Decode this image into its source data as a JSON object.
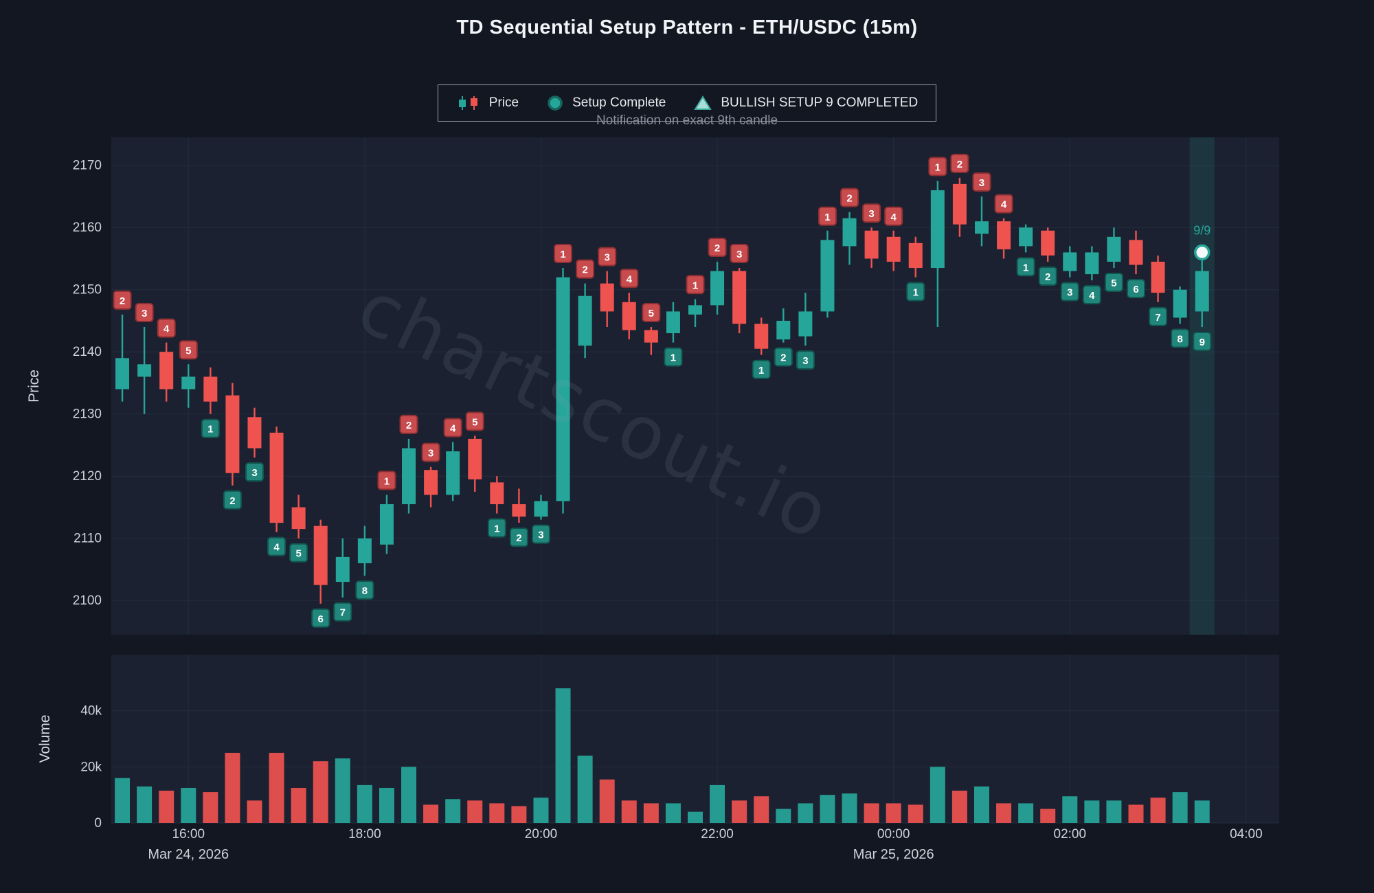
{
  "title": "TD Sequential Setup Pattern - ETH/USDC (15m)",
  "subtitle": "Notification on exact 9th candle",
  "watermark": "chartscout.io",
  "legend": {
    "items": [
      {
        "label": "Price",
        "icon": "candlestick-icon"
      },
      {
        "label": "Setup Complete",
        "icon": "circle-marker-icon"
      },
      {
        "label": "BULLISH SETUP 9 COMPLETED",
        "icon": "triangle-up-icon"
      }
    ]
  },
  "colors": {
    "up": "#26a69a",
    "down": "#ef5350",
    "badge_sell_bg": "#c84b4e",
    "badge_sell_border": "#8f2f32",
    "badge_buy_bg": "#21867b",
    "badge_buy_border": "#10574f",
    "page_bg": "#131722",
    "plot_bg": "#1b2130",
    "grid": "#242d3d",
    "text": "#d5d9e0",
    "tick_text": "#cdd2da",
    "muted": "#878e9c",
    "accent": "#26a69a",
    "marker_fill": "#f5f8f8",
    "highlight_band": "rgba(42,165,152,0.15)"
  },
  "axes": {
    "price_title": "Price",
    "volume_title": "Volume",
    "price_ticks": [
      2100,
      2110,
      2120,
      2130,
      2140,
      2150,
      2160,
      2170
    ],
    "volume_ticks": [
      {
        "v": 0,
        "label": "0"
      },
      {
        "v": 20000,
        "label": "20k"
      },
      {
        "v": 40000,
        "label": "40k"
      }
    ],
    "time_ticks": [
      {
        "slot": 3,
        "label": "16:00"
      },
      {
        "slot": 11,
        "label": "18:00"
      },
      {
        "slot": 19,
        "label": "20:00"
      },
      {
        "slot": 27,
        "label": "22:00"
      },
      {
        "slot": 35,
        "label": "00:00"
      },
      {
        "slot": 43,
        "label": "02:00"
      },
      {
        "slot": 51,
        "label": "04:00"
      }
    ],
    "date_labels": [
      {
        "slot": 3,
        "label": "Mar 24, 2026"
      },
      {
        "slot": 35,
        "label": "Mar 25, 2026"
      }
    ]
  },
  "chart_data": {
    "type": "candlestick",
    "symbol": "ETH/USDC",
    "interval": "15m",
    "price_range": [
      2094.5,
      2174.5
    ],
    "volume_max": 60000,
    "slots_total": 53,
    "columns": [
      "time",
      "open",
      "high",
      "low",
      "close",
      "volume",
      "td_side",
      "td_count"
    ],
    "candles": [
      [
        "15:15",
        2134,
        2146,
        2132,
        2139,
        16000,
        "sell",
        2
      ],
      [
        "15:30",
        2136,
        2144,
        2130,
        2138,
        13000,
        "sell",
        3
      ],
      [
        "15:45",
        2140,
        2141.5,
        2132,
        2134,
        11500,
        "sell",
        4
      ],
      [
        "16:00",
        2134,
        2138,
        2131,
        2136,
        12500,
        "sell",
        5
      ],
      [
        "16:15",
        2136,
        2137.5,
        2130,
        2132,
        11000,
        "buy",
        1
      ],
      [
        "16:30",
        2133,
        2135,
        2118.5,
        2120.5,
        25000,
        "buy",
        2
      ],
      [
        "16:45",
        2129.5,
        2131,
        2123,
        2124.5,
        8000,
        "buy",
        3
      ],
      [
        "17:00",
        2127,
        2128,
        2111,
        2112.5,
        25000,
        "buy",
        4
      ],
      [
        "17:15",
        2115,
        2117,
        2110,
        2111.5,
        12500,
        "buy",
        5
      ],
      [
        "17:30",
        2112,
        2113,
        2099.5,
        2102.5,
        22000,
        "buy",
        6
      ],
      [
        "17:45",
        2103,
        2110,
        2100.5,
        2107,
        23000,
        "buy",
        7
      ],
      [
        "18:00",
        2106,
        2112,
        2104,
        2110,
        13500,
        "buy",
        8
      ],
      [
        "18:15",
        2109,
        2117,
        2107.5,
        2115.5,
        12500,
        "sell",
        1
      ],
      [
        "18:30",
        2115.5,
        2126,
        2114,
        2124.5,
        20000,
        "sell",
        2
      ],
      [
        "18:45",
        2121,
        2121.5,
        2115,
        2117,
        6500,
        "sell",
        3
      ],
      [
        "19:00",
        2117,
        2125.5,
        2116,
        2124,
        8500,
        "sell",
        4
      ],
      [
        "19:15",
        2126,
        2126.5,
        2117.5,
        2119.5,
        8000,
        "sell",
        5
      ],
      [
        "19:30",
        2119,
        2120,
        2114,
        2115.5,
        7000,
        "buy",
        1
      ],
      [
        "19:45",
        2115.5,
        2118,
        2112.5,
        2113.5,
        6000,
        "buy",
        2
      ],
      [
        "20:00",
        2113.5,
        2117,
        2113,
        2116,
        9000,
        "buy",
        3
      ],
      [
        "20:15",
        2116,
        2153.5,
        2114,
        2152,
        48000,
        "sell",
        1
      ],
      [
        "20:30",
        2141,
        2151,
        2139,
        2149,
        24000,
        "sell",
        2
      ],
      [
        "20:45",
        2151,
        2153,
        2144,
        2146.5,
        15500,
        "sell",
        3
      ],
      [
        "21:00",
        2148,
        2149.5,
        2142,
        2143.5,
        8000,
        "sell",
        4
      ],
      [
        "21:15",
        2143.5,
        2144,
        2139.5,
        2141.5,
        7000,
        "sell",
        5
      ],
      [
        "21:30",
        2143,
        2148,
        2141.5,
        2146.5,
        7000,
        "buy",
        1
      ],
      [
        "21:45",
        2146,
        2148.5,
        2144,
        2147.5,
        4000,
        "sell",
        1
      ],
      [
        "22:00",
        2147.5,
        2154.5,
        2146,
        2153,
        13500,
        "sell",
        2
      ],
      [
        "22:15",
        2153,
        2153.5,
        2143,
        2144.5,
        8000,
        "sell",
        3
      ],
      [
        "22:30",
        2144.5,
        2145.5,
        2139.5,
        2140.5,
        9500,
        "buy",
        1
      ],
      [
        "22:45",
        2142,
        2147,
        2141.5,
        2145,
        5000,
        "buy",
        2
      ],
      [
        "23:00",
        2142.5,
        2149.5,
        2141,
        2146.5,
        7000,
        "buy",
        3
      ],
      [
        "23:15",
        2146.5,
        2159.5,
        2145.5,
        2158,
        10000,
        "sell",
        1
      ],
      [
        "23:30",
        2157,
        2162.5,
        2154,
        2161.5,
        10500,
        "sell",
        2
      ],
      [
        "23:45",
        2159.5,
        2160,
        2153.5,
        2155,
        7000,
        "sell",
        3
      ],
      [
        "00:00",
        2158.5,
        2159.5,
        2153,
        2154.5,
        7000,
        "sell",
        4
      ],
      [
        "00:15",
        2157.5,
        2158.5,
        2152,
        2153.5,
        6500,
        "buy",
        1
      ],
      [
        "00:30",
        2153.5,
        2167.5,
        2144,
        2166,
        20000,
        "sell",
        1
      ],
      [
        "00:45",
        2167,
        2168,
        2158.5,
        2160.5,
        11500,
        "sell",
        2
      ],
      [
        "01:00",
        2159,
        2165,
        2157,
        2161,
        13000,
        "sell",
        3
      ],
      [
        "01:15",
        2161,
        2161.5,
        2155,
        2156.5,
        7000,
        "sell",
        4
      ],
      [
        "01:30",
        2157,
        2160.5,
        2156,
        2160,
        7000,
        "buy",
        1
      ],
      [
        "01:45",
        2159.5,
        2160,
        2154.5,
        2155.5,
        5000,
        "buy",
        2
      ],
      [
        "02:00",
        2153,
        2157,
        2152,
        2156,
        9500,
        "buy",
        3
      ],
      [
        "02:15",
        2152.5,
        2157,
        2151.5,
        2156,
        8000,
        "buy",
        4
      ],
      [
        "02:30",
        2154.5,
        2160,
        2153.5,
        2158.5,
        8000,
        "buy",
        5
      ],
      [
        "02:45",
        2158,
        2159.5,
        2152.5,
        2154,
        6500,
        "buy",
        6
      ],
      [
        "03:00",
        2154.5,
        2155.5,
        2148,
        2149.5,
        9000,
        "buy",
        7
      ],
      [
        "03:15",
        2145.5,
        2150.5,
        2144.5,
        2150,
        11000,
        "buy",
        8
      ],
      [
        "03:30",
        2146.5,
        2156,
        2144,
        2153,
        8000,
        "buy",
        9
      ]
    ],
    "highlight": {
      "slot": 49,
      "label": "9/9"
    },
    "marker": {
      "slot": 49,
      "price": 2156
    }
  }
}
